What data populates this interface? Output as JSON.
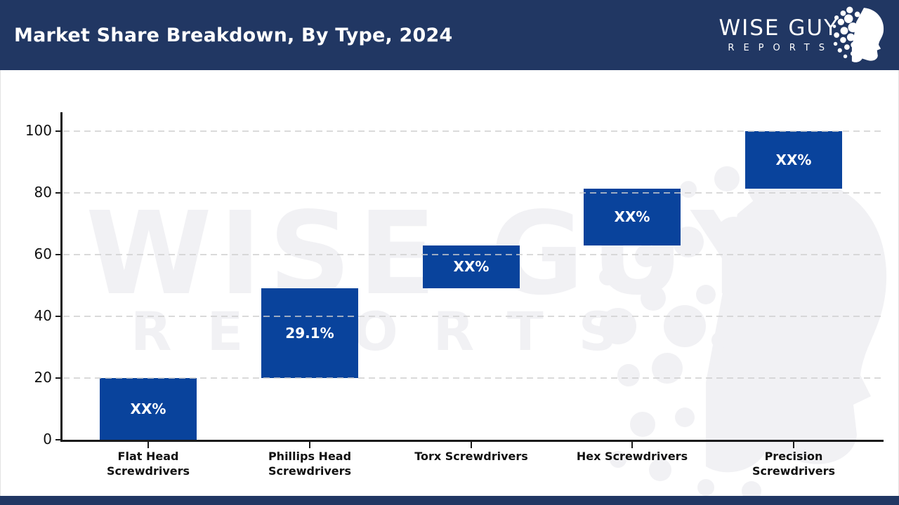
{
  "header": {
    "title": "Market Share Breakdown, By Type, 2024",
    "logo": {
      "line1": "WISE GUY",
      "line2": "REPORTS"
    }
  },
  "watermark": {
    "line1": "WISE GUY",
    "line2": "REPORTS"
  },
  "footer": {
    "present": true
  },
  "colors": {
    "header_bg": "#213763",
    "footer_bg": "#213763",
    "bar": "#09439c",
    "bar_label": "#ffffff",
    "grid": "#d9d9d9",
    "axis": "#1a1a1a",
    "watermark": "#f1f1f4",
    "title_text": "#ffffff"
  },
  "chart_data": {
    "type": "bar",
    "subtype": "waterfall",
    "title": "Market Share Breakdown, By Type, 2024",
    "xlabel": "",
    "ylabel": "",
    "categories": [
      "Flat Head\nScrewdrivers",
      "Phillips Head\nScrewdrivers",
      "Torx Screwdrivers",
      "Hex Screwdrivers",
      "Precision\nScrewdrivers"
    ],
    "series": [
      {
        "name": "Market Share (%)",
        "segments": [
          {
            "start": 0,
            "end": 20,
            "label": "XX%"
          },
          {
            "start": 20,
            "end": 49.1,
            "label": "29.1%"
          },
          {
            "start": 49.1,
            "end": 63,
            "label": "XX%"
          },
          {
            "start": 63,
            "end": 81.4,
            "label": "XX%"
          },
          {
            "start": 81.4,
            "end": 100,
            "label": "XX%"
          }
        ]
      }
    ],
    "yticks": [
      0,
      20,
      40,
      60,
      80,
      100
    ],
    "ylim": [
      0,
      106
    ],
    "grid": "horizontal dashed, drawn over bars",
    "legend": "none"
  }
}
